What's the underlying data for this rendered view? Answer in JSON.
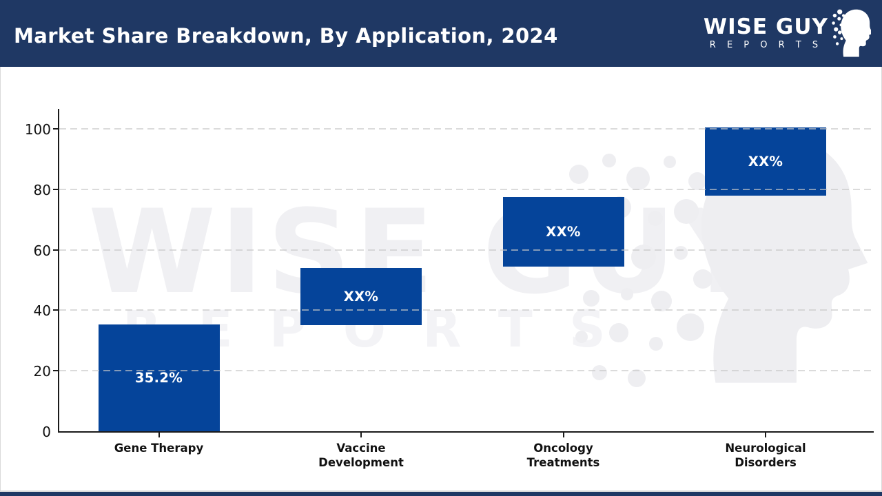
{
  "header": {
    "title": "Market Share Breakdown, By Application, 2024",
    "logo": {
      "name": "WISE GUY",
      "sub": "R E P O R T S"
    }
  },
  "watermark": {
    "big": "WISE GUY",
    "sub": "R E P O R T S"
  },
  "chart_data": {
    "type": "bar",
    "subtype": "floating-segment (waterfall-style market share bars)",
    "title": "Market Share Breakdown, By Application, 2024",
    "categories": [
      "Gene Therapy",
      "Vaccine Development",
      "Oncology Treatments",
      "Neurological Disorders"
    ],
    "bars": [
      {
        "category": "Gene Therapy",
        "label_lines": [
          "Gene Therapy"
        ],
        "start": 0,
        "end": 35.2,
        "value_label": "35.2%"
      },
      {
        "category": "Vaccine Development",
        "label_lines": [
          "Vaccine",
          "Development"
        ],
        "start": 35,
        "end": 54,
        "value_label": "XX%"
      },
      {
        "category": "Oncology Treatments",
        "label_lines": [
          "Oncology",
          "Treatments"
        ],
        "start": 54.5,
        "end": 77.5,
        "value_label": "XX%"
      },
      {
        "category": "Neurological Disorders",
        "label_lines": [
          "Neurological",
          "Disorders"
        ],
        "start": 78,
        "end": 100.5,
        "value_label": "XX%"
      }
    ],
    "yticks": [
      0,
      20,
      40,
      60,
      80,
      100
    ],
    "ylim": [
      0,
      106.5
    ],
    "xlabel": "",
    "ylabel": "",
    "grid": {
      "horizontal": true,
      "style": "dashed"
    },
    "legend": "none",
    "bar_color": "#05449a",
    "value_label_color": "#ffffff"
  },
  "colors": {
    "header_bg": "#1f3864",
    "bar": "#05449a",
    "axis": "#1a1a1a",
    "grid_dash": "#cccccc",
    "watermark": "#f0f0f3",
    "page_border": "#d9d9d9",
    "title_text": "#ffffff",
    "tick_text": "#111111"
  }
}
